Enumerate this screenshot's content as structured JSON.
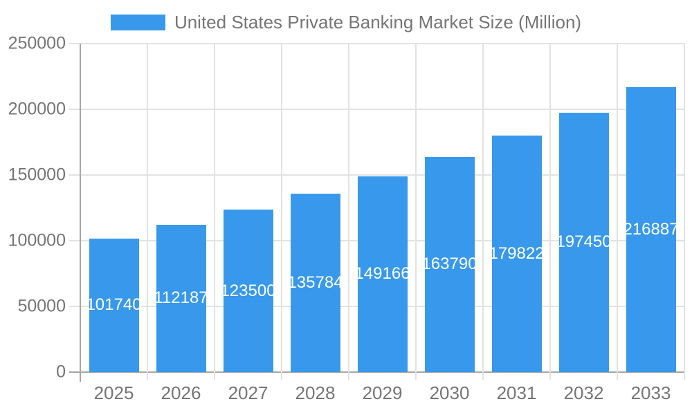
{
  "chart_data": {
    "type": "bar",
    "title": "United States Private Banking Market Size (Million)",
    "categories": [
      "2025",
      "2026",
      "2027",
      "2028",
      "2029",
      "2030",
      "2031",
      "2032",
      "2033"
    ],
    "values": [
      101740,
      112187,
      123500,
      135784,
      149166,
      163790,
      179822,
      197450,
      216887
    ],
    "value_labels": [
      "101740",
      "112187",
      "123500",
      "135784",
      "149166",
      "163790",
      "179822",
      "197450",
      "216887"
    ],
    "xlabel": "",
    "ylabel": "",
    "ylim": [
      0,
      250000
    ],
    "yticks": [
      0,
      50000,
      100000,
      150000,
      200000,
      250000
    ],
    "ytick_labels": [
      "0",
      "50000",
      "100000",
      "150000",
      "200000",
      "250000"
    ],
    "grid": true,
    "legend_position": "top",
    "colors": {
      "bar": "#3899EC",
      "value_label": "#FFFFFF",
      "axis_text": "#757575",
      "gridline": "#E2E2E2",
      "axis_line": "#A6A6A6",
      "background": "#FFFFFF"
    }
  }
}
